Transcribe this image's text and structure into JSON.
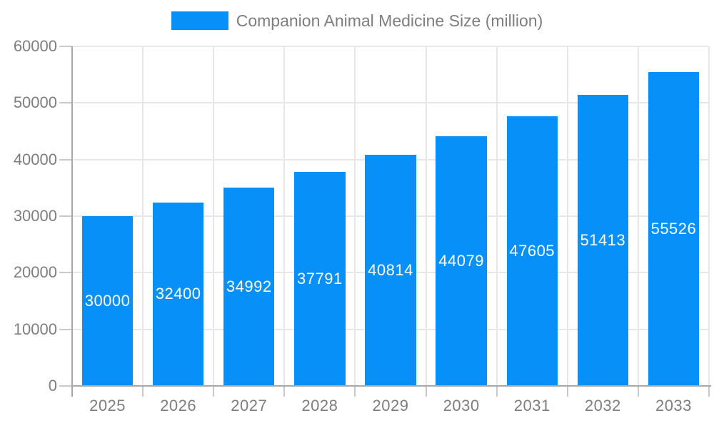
{
  "legend": {
    "label": "Companion Animal Medicine Size (million)"
  },
  "chart_data": {
    "type": "bar",
    "title": "Companion Animal Medicine Size (million)",
    "legend_position": "top",
    "grid": true,
    "categories": [
      "2025",
      "2026",
      "2027",
      "2028",
      "2029",
      "2030",
      "2031",
      "2032",
      "2033"
    ],
    "values": [
      30000,
      32400,
      34992,
      37791,
      40814,
      44079,
      47605,
      51413,
      55526
    ],
    "value_labels": [
      "30000",
      "32400",
      "34992",
      "37791",
      "40814",
      "44079",
      "47605",
      "51413",
      "55526"
    ],
    "xlabel": "",
    "ylabel": "",
    "ylim": [
      0,
      60000
    ],
    "yticks": [
      0,
      10000,
      20000,
      30000,
      40000,
      50000,
      60000
    ],
    "ytick_labels": [
      "0",
      "10000",
      "20000",
      "30000",
      "40000",
      "50000",
      "60000"
    ]
  },
  "colors": {
    "bar": "#0690f8",
    "grid": "#e7e7e7",
    "axis": "#a8a8a8",
    "tick": "#c9c9c9",
    "text": "#7e7e7e",
    "value_label": "#ffffff",
    "background": "#ffffff"
  }
}
